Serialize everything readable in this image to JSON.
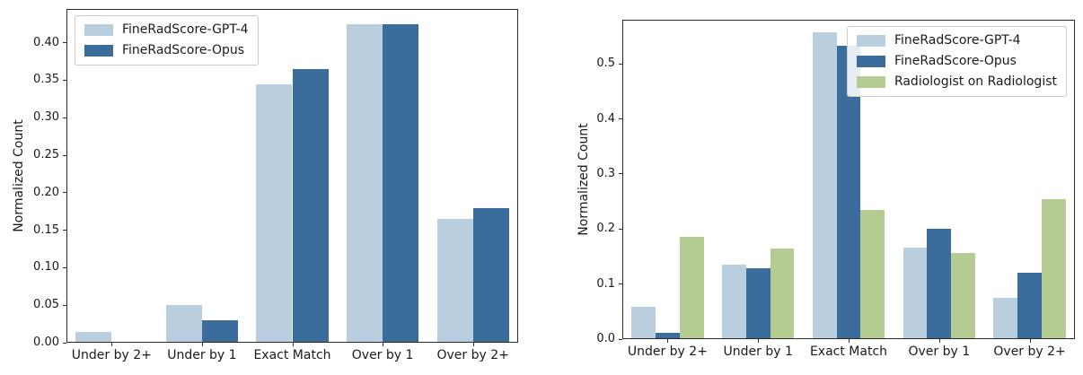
{
  "figure": {
    "background": "#ffffff"
  },
  "colors": {
    "gpt4": "#b9cfe0",
    "opus": "#3a6d9b",
    "radiologist": "#b4cc92",
    "spine": "#2b2b2b",
    "text": "#1a1a1a",
    "legend_border": "#cccccc"
  },
  "chart_data": [
    {
      "type": "bar",
      "title": "",
      "ylabel": "Normalized Count",
      "xlabel": "",
      "grid": false,
      "legend_position": "upper-left",
      "categories": [
        "Under by 2+",
        "Under by 1",
        "Exact Match",
        "Over by 1",
        "Over by 2+"
      ],
      "series": [
        {
          "name": "FineRadScore-GPT-4",
          "color": "#b9cfe0",
          "values": [
            0.015,
            0.05,
            0.345,
            0.425,
            0.165
          ]
        },
        {
          "name": "FineRadScore-Opus",
          "color": "#3a6d9b",
          "values": [
            0.0,
            0.03,
            0.365,
            0.425,
            0.18
          ]
        }
      ],
      "ylim": [
        0,
        0.445
      ],
      "yticks": [
        {
          "value": 0.0,
          "label": "0.00"
        },
        {
          "value": 0.05,
          "label": "0.05"
        },
        {
          "value": 0.1,
          "label": "0.10"
        },
        {
          "value": 0.15,
          "label": "0.15"
        },
        {
          "value": 0.2,
          "label": "0.20"
        },
        {
          "value": 0.25,
          "label": "0.25"
        },
        {
          "value": 0.3,
          "label": "0.30"
        },
        {
          "value": 0.35,
          "label": "0.35"
        },
        {
          "value": 0.4,
          "label": "0.40"
        }
      ]
    },
    {
      "type": "bar",
      "title": "",
      "ylabel": "Normalized Count",
      "xlabel": "",
      "grid": false,
      "legend_position": "upper-right",
      "categories": [
        "Under by 2+",
        "Under by 1",
        "Exact Match",
        "Over by 1",
        "Over by 2+"
      ],
      "series": [
        {
          "name": "FineRadScore-GPT-4",
          "color": "#b9cfe0",
          "values": [
            0.058,
            0.136,
            0.558,
            0.166,
            0.075
          ]
        },
        {
          "name": "FineRadScore-Opus",
          "color": "#3a6d9b",
          "values": [
            0.012,
            0.128,
            0.533,
            0.2,
            0.121
          ]
        },
        {
          "name": "Radiologist on Radiologist",
          "color": "#b4cc92",
          "values": [
            0.185,
            0.164,
            0.235,
            0.156,
            0.255
          ]
        }
      ],
      "ylim": [
        0,
        0.58
      ],
      "yticks": [
        {
          "value": 0.0,
          "label": "0.0"
        },
        {
          "value": 0.1,
          "label": "0.1"
        },
        {
          "value": 0.2,
          "label": "0.2"
        },
        {
          "value": 0.3,
          "label": "0.3"
        },
        {
          "value": 0.4,
          "label": "0.4"
        },
        {
          "value": 0.5,
          "label": "0.5"
        }
      ]
    }
  ]
}
